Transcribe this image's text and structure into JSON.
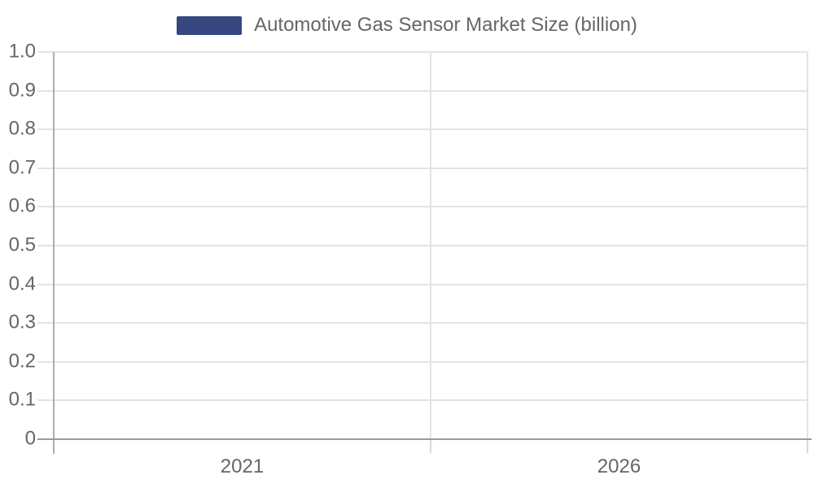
{
  "legend": {
    "label": "Automotive Gas Sensor Market Size (billion)"
  },
  "colors": {
    "series": "#35477E",
    "grid_line": "#e3e3e3",
    "x_axis_line": "#9b9b9b",
    "y_axis_line": "#aeaeae",
    "tick_line": "#d9d9d9",
    "label_text": "#666666",
    "background": "#ffffff"
  },
  "chart_data": {
    "type": "bar",
    "title": "Automotive Gas Sensor Market Size (billion)",
    "categories": [
      "2021",
      "2026"
    ],
    "series": [
      {
        "name": "Automotive Gas Sensor Market Size (billion)",
        "values": [
          null,
          null
        ]
      }
    ],
    "xlabel": "",
    "ylabel": "",
    "ylim": [
      0,
      1
    ],
    "y_ticks": [
      "1.0",
      "0.9",
      "0.8",
      "0.7",
      "0.6",
      "0.5",
      "0.4",
      "0.3",
      "0.2",
      "0.1",
      "0"
    ],
    "grid": true,
    "legend_position": "top-center"
  }
}
